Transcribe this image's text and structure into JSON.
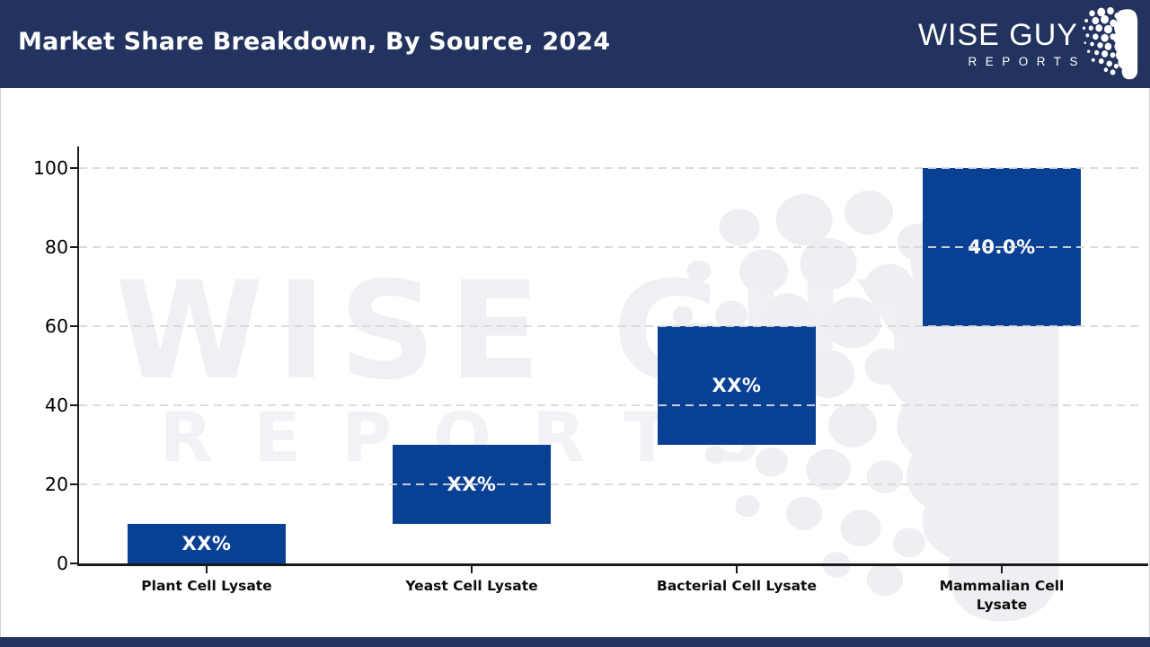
{
  "header": {
    "title": "Market Share Breakdown, By Source, 2024",
    "logo": {
      "line1": "WISE GUY",
      "line2": "REPORTS"
    }
  },
  "watermark": {
    "line1": "WISE GUY",
    "line2": "REPORTS"
  },
  "chart_data": {
    "type": "bar",
    "subtype": "floating-waterfall-segments",
    "title": "Market Share Breakdown, By Source, 2024",
    "categories": [
      "Plant Cell Lysate",
      "Yeast Cell Lysate",
      "Bacterial Cell Lysate",
      "Mammalian Cell Lysate"
    ],
    "series": [
      {
        "name": "Market share segment",
        "ranges": [
          [
            0,
            10
          ],
          [
            10,
            30
          ],
          [
            30,
            60
          ],
          [
            60,
            100
          ]
        ],
        "values": [
          10,
          20,
          30,
          40
        ]
      }
    ],
    "bar_labels": [
      "XX%",
      "XX%",
      "XX%",
      "40.0%"
    ],
    "xlabel": "",
    "ylabel": "",
    "y_ticks": [
      0,
      20,
      40,
      60,
      80,
      100
    ],
    "ylim": [
      0,
      105
    ],
    "grid": "horizontal-dashed-on-top",
    "legend": "none",
    "bar_color": "#084094",
    "axis_color": "#1a1a1a",
    "gridline_color": "#d8d8d8"
  },
  "colors": {
    "header_bg": "#21335e",
    "footer_bg": "#21335e",
    "bar_blue": "#084094",
    "watermark_gray": "#f0f0f4"
  }
}
